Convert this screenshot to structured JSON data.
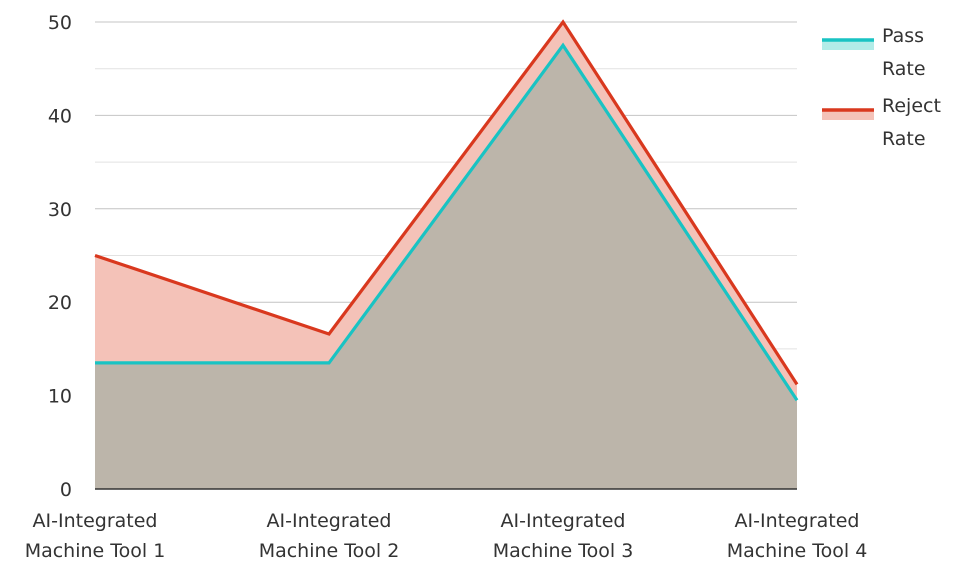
{
  "chart_data": {
    "type": "area",
    "categories": [
      [
        "AI-Integrated",
        "Machine Tool 1"
      ],
      [
        "AI-Integrated",
        "Machine Tool 2"
      ],
      [
        "AI-Integrated",
        "Machine Tool 3"
      ],
      [
        "AI-Integrated",
        "Machine Tool 4"
      ]
    ],
    "series": [
      {
        "name": "Pass Rate",
        "legend_lines": [
          "Pass",
          "Rate"
        ],
        "values": [
          13.5,
          13.5,
          47.5,
          9.5
        ],
        "line_color": "#19c3c3",
        "fill_color": "#bcb5aa"
      },
      {
        "name": "Reject Rate",
        "legend_lines": [
          "Reject",
          "Rate"
        ],
        "values": [
          25,
          16.6,
          50,
          11.2
        ],
        "line_color": "#d9381e",
        "fill_color": "#f4c2b8"
      }
    ],
    "legend_swatch_fills": [
      "#b2ece8",
      "#f4c2b8"
    ],
    "ylim": [
      0,
      50
    ],
    "yticks": [
      0,
      10,
      20,
      30,
      40,
      50
    ],
    "minor_grid": true,
    "legend_position": "top-right",
    "title": "",
    "xlabel": "",
    "ylabel": ""
  }
}
